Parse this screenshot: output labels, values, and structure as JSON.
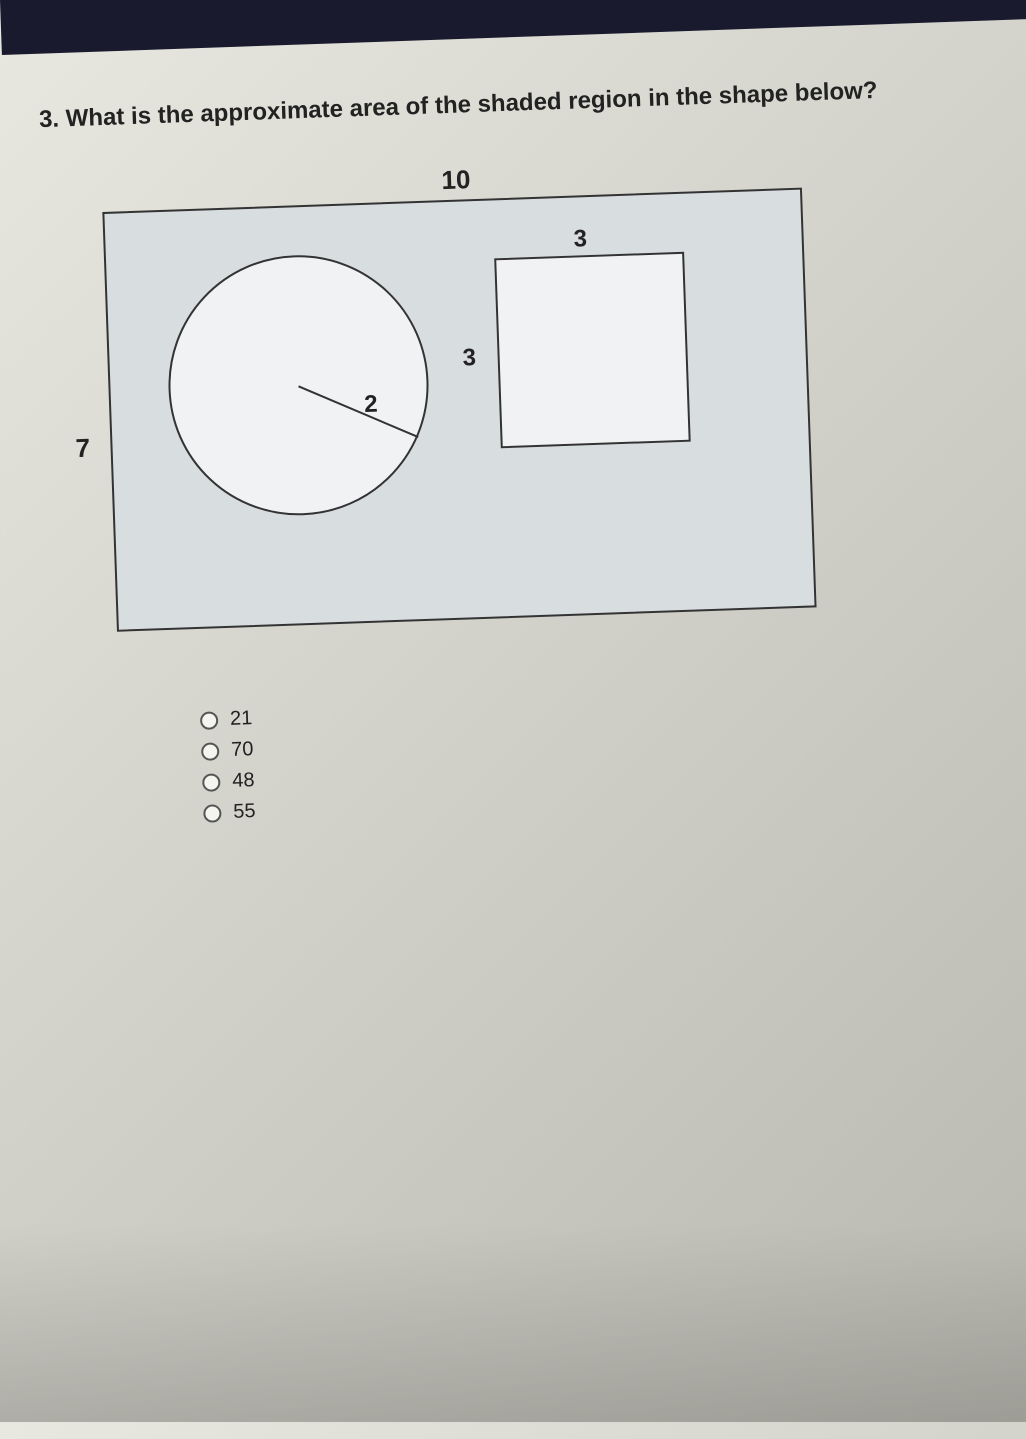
{
  "question": {
    "number": "3.",
    "text": "What is the approximate area of the shaded region in the shape below?"
  },
  "diagram": {
    "outer_rect": {
      "width_label": "10",
      "height_label": "7",
      "fill_color": "#d8dde0",
      "border_color": "#333333"
    },
    "circle": {
      "radius_label": "2",
      "fill_color": "#f0f2f4",
      "border_color": "#333333"
    },
    "inner_square": {
      "top_label": "3",
      "side_label": "3",
      "fill_color": "#f0f2f4",
      "border_color": "#333333"
    }
  },
  "answers": {
    "options": [
      {
        "value": "21"
      },
      {
        "value": "70"
      },
      {
        "value": "48"
      },
      {
        "value": "55"
      }
    ]
  },
  "styling": {
    "page_background": "#e8e8e0",
    "text_color": "#222222",
    "question_fontsize": 24,
    "label_fontsize": 24,
    "answer_fontsize": 20
  }
}
